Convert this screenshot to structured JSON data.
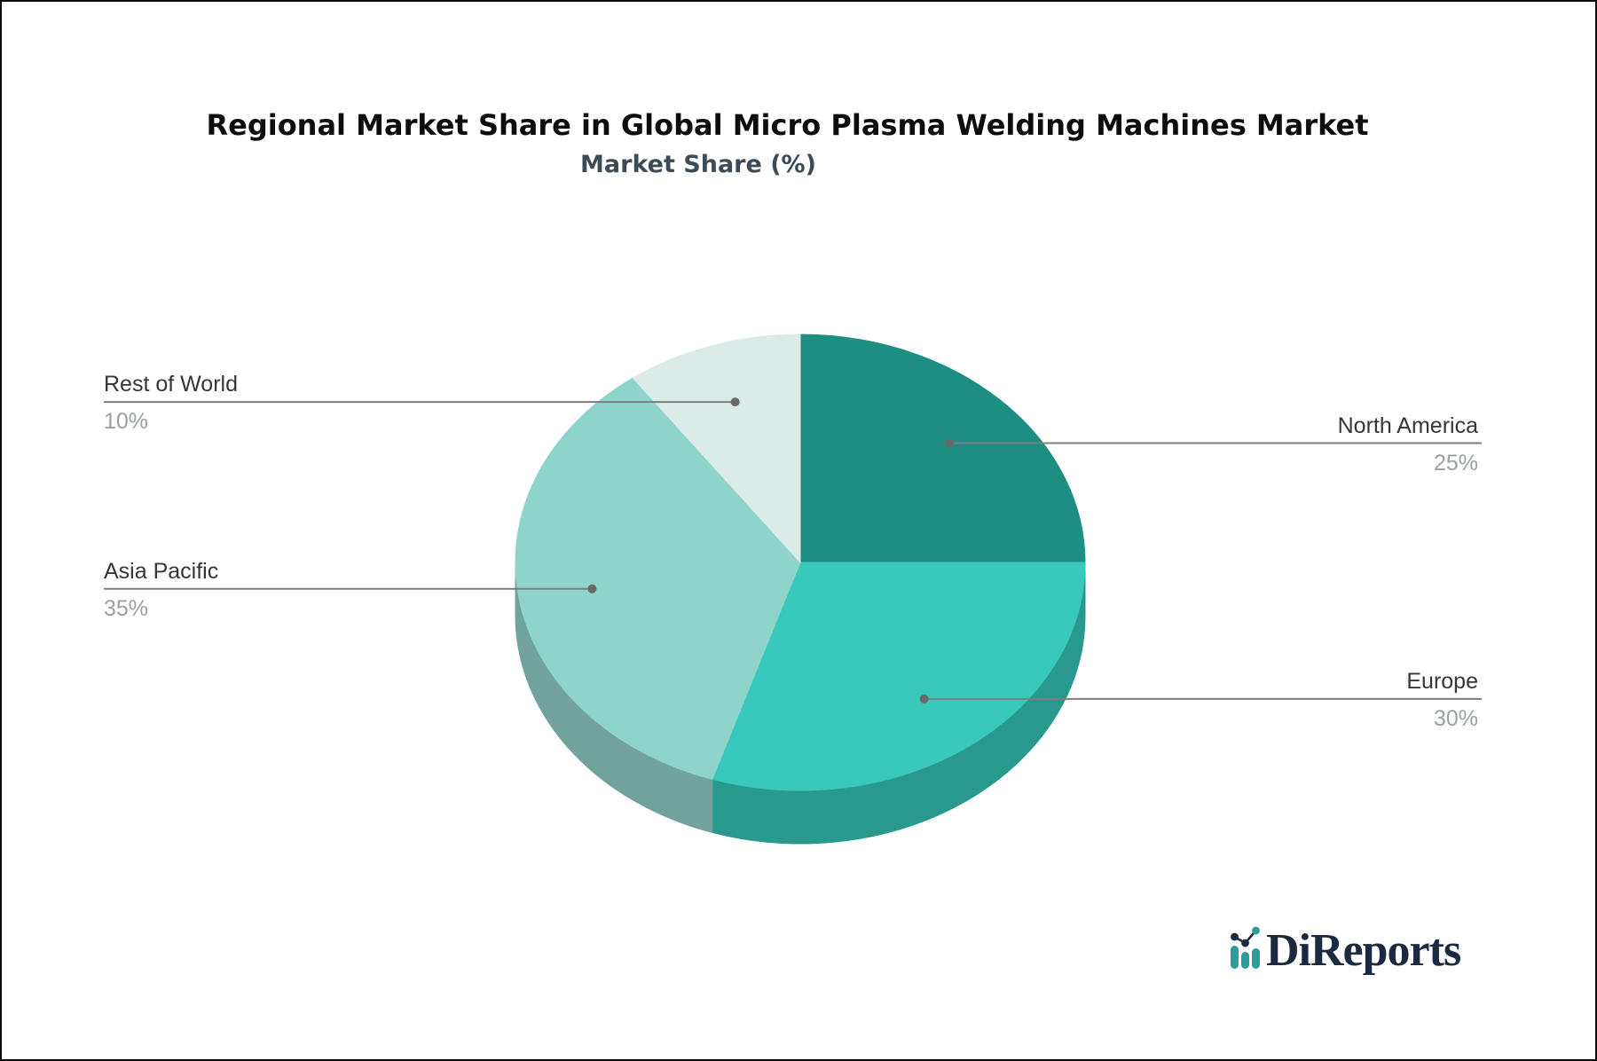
{
  "title": "Regional Market Share in Global Micro Plasma Welding Machines Market",
  "subtitle": "Market Share (%)",
  "logo": {
    "text": "DiReports",
    "icon": "bar-line-chart-icon"
  },
  "chart_data": {
    "type": "pie",
    "style": "3d",
    "start": "top",
    "direction": "clockwise",
    "unit": "%",
    "title": "Regional Market Share in Global Micro Plasma Welding Machines Market",
    "subtitle": "Market Share (%)",
    "legend_position": "none",
    "leader_line_color": "#7d7d7d",
    "leader_dot_color": "#696969",
    "slices": [
      {
        "label": "North America",
        "value": 25,
        "display": "25%",
        "color": "#1e8e82",
        "label_side": "right"
      },
      {
        "label": "Europe",
        "value": 30,
        "display": "30%",
        "color": "#38c9bc",
        "rim_color": "#2a998d",
        "label_side": "right"
      },
      {
        "label": "Asia Pacific",
        "value": 35,
        "display": "35%",
        "color": "#8ed4cb",
        "rim_color": "#71a29b",
        "label_side": "left"
      },
      {
        "label": "Rest of World",
        "value": 10,
        "display": "10%",
        "color": "#dbebe7",
        "label_side": "left"
      }
    ]
  }
}
